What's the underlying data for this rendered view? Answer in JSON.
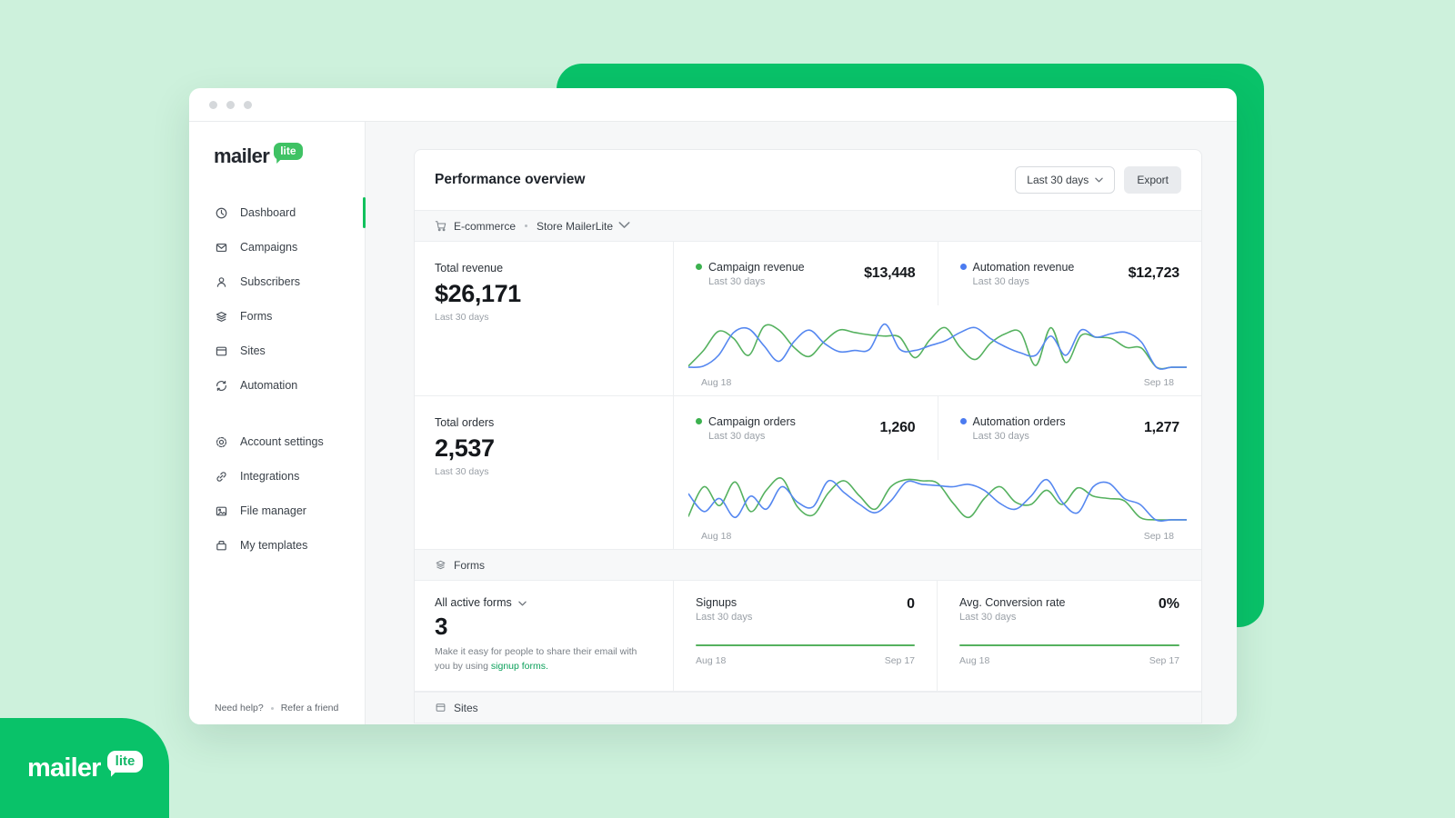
{
  "colors": {
    "brand_green": "#09c269",
    "badge_green": "#3fc264",
    "chart_green": "#55b15f",
    "chart_blue": "#5587f0",
    "dot_green": "#3cb14f",
    "dot_blue": "#4b7bf0",
    "link_green": "#0ba05a"
  },
  "sidebar": {
    "logo_text": "mailer",
    "logo_badge": "lite",
    "items": [
      {
        "label": "Dashboard",
        "icon": "dashboard",
        "active": true,
        "group": 1
      },
      {
        "label": "Campaigns",
        "icon": "campaigns",
        "group": 1
      },
      {
        "label": "Subscribers",
        "icon": "subscribers",
        "group": 1
      },
      {
        "label": "Forms",
        "icon": "forms",
        "group": 1
      },
      {
        "label": "Sites",
        "icon": "sites",
        "group": 1
      },
      {
        "label": "Automation",
        "icon": "automation",
        "group": 1
      },
      {
        "label": "Account settings",
        "icon": "settings",
        "group": 2
      },
      {
        "label": "Integrations",
        "icon": "integrations",
        "group": 2
      },
      {
        "label": "File manager",
        "icon": "file-manager",
        "group": 2
      },
      {
        "label": "My templates",
        "icon": "templates",
        "group": 2
      }
    ],
    "footer": {
      "help": "Need help?",
      "refer": "Refer a friend"
    }
  },
  "header": {
    "title": "Performance overview",
    "range": "Last 30 days",
    "export": "Export"
  },
  "breadcrumb": {
    "icon": "cart",
    "section": "E-commerce",
    "store": "Store MailerLite"
  },
  "revenue": {
    "total": {
      "label": "Total revenue",
      "value": "$26,171",
      "period": "Last 30 days"
    },
    "campaign": {
      "label": "Campaign revenue",
      "period": "Last 30 days",
      "value": "$13,448"
    },
    "automation": {
      "label": "Automation revenue",
      "period": "Last 30 days",
      "value": "$12,723"
    },
    "axis": {
      "start": "Aug 18",
      "end": "Sep 18"
    }
  },
  "orders": {
    "total": {
      "label": "Total orders",
      "value": "2,537",
      "period": "Last 30 days"
    },
    "campaign": {
      "label": "Campaign orders",
      "period": "Last 30 days",
      "value": "1,260"
    },
    "automation": {
      "label": "Automation orders",
      "period": "Last 30 days",
      "value": "1,277"
    },
    "axis": {
      "start": "Aug 18",
      "end": "Sep 18"
    }
  },
  "forms_section": {
    "label": "Forms",
    "icon": "forms"
  },
  "forms": {
    "active": {
      "label": "All active forms",
      "value": "3",
      "description": "Make it easy for people to share their email with you by using",
      "link": "signup forms."
    },
    "signups": {
      "label": "Signups",
      "period": "Last 30 days",
      "value": "0",
      "axis": {
        "start": "Aug 18",
        "end": "Sep 17"
      }
    },
    "conversion": {
      "label": "Avg. Conversion rate",
      "period": "Last 30 days",
      "value": "0%",
      "axis": {
        "start": "Aug 18",
        "end": "Sep 17"
      }
    }
  },
  "sites_section": {
    "label": "Sites",
    "icon": "sites"
  },
  "charts": {
    "revenue": {
      "series": [
        {
          "name": "Campaign revenue",
          "color": "chart_green",
          "points": [
            86,
            60,
            28,
            40,
            68,
            20,
            26,
            55,
            70,
            45,
            26,
            30,
            34,
            36,
            38,
            72,
            42,
            22,
            55,
            75,
            48,
            32,
            30,
            85,
            22,
            80,
            35,
            38,
            40,
            55,
            56,
            88,
            88,
            88
          ]
        },
        {
          "name": "Automation revenue",
          "color": "chart_blue",
          "points": [
            88,
            86,
            68,
            30,
            24,
            52,
            78,
            45,
            26,
            48,
            62,
            60,
            58,
            16,
            58,
            60,
            52,
            44,
            30,
            22,
            40,
            54,
            64,
            68,
            36,
            68,
            26,
            38,
            32,
            30,
            46,
            88,
            88,
            88
          ]
        }
      ]
    },
    "orders": {
      "series": [
        {
          "name": "Campaign orders",
          "color": "chart_green",
          "points": [
            80,
            30,
            62,
            22,
            72,
            36,
            16,
            64,
            78,
            40,
            20,
            46,
            68,
            30,
            18,
            20,
            24,
            58,
            82,
            50,
            30,
            56,
            60,
            36,
            60,
            32,
            46,
            50,
            54,
            82,
            86,
            86,
            86
          ]
        },
        {
          "name": "Automation orders",
          "color": "chart_blue",
          "points": [
            42,
            72,
            50,
            82,
            46,
            68,
            30,
            56,
            64,
            20,
            40,
            60,
            74,
            54,
            22,
            26,
            28,
            30,
            26,
            36,
            58,
            68,
            46,
            18,
            56,
            74,
            30,
            24,
            50,
            60,
            86,
            86,
            86
          ]
        }
      ]
    }
  },
  "corner_logo": {
    "text": "mailer",
    "badge": "lite"
  }
}
